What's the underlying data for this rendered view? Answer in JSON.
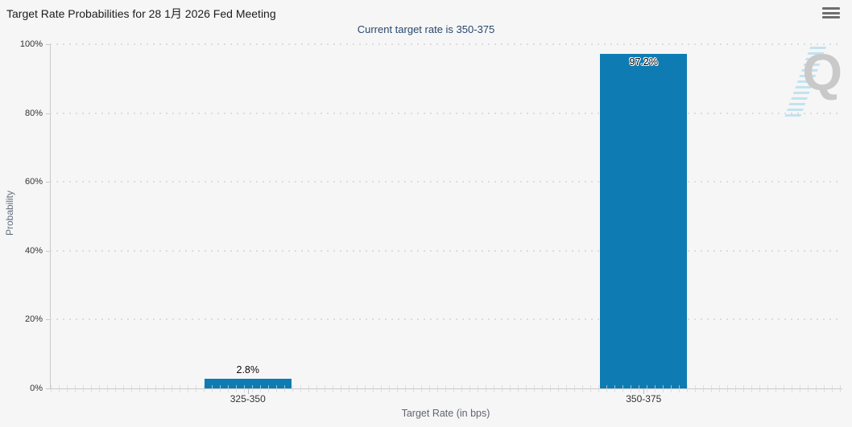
{
  "header": {
    "title": "Target Rate Probabilities for 28 1月 2026 Fed Meeting"
  },
  "menu": {
    "icon": "hamburger-menu-icon"
  },
  "subtitle": {
    "text": "Current target rate is 350-375"
  },
  "watermark": {
    "letter": "Q"
  },
  "chart_data": {
    "type": "bar",
    "title": "Target Rate Probabilities for 28 1月 2026 Fed Meeting",
    "subtitle": "Current target rate is 350-375",
    "categories": [
      "325-350",
      "350-375"
    ],
    "values": [
      2.8,
      97.2
    ],
    "value_labels": [
      "2.8%",
      "97.2%"
    ],
    "xlabel": "Target Rate (in bps)",
    "ylabel": "Probability",
    "ylim": [
      0,
      100
    ],
    "yticks": [
      0,
      20,
      40,
      60,
      80,
      100
    ],
    "ytick_labels": [
      "0%",
      "20%",
      "40%",
      "60%",
      "80%",
      "100%"
    ],
    "grid": "horizontal-dotted",
    "legend": "none",
    "bar_color": "#0e7cb3"
  },
  "colors": {
    "background": "#f6f6f6",
    "bar": "#0e7cb3",
    "axis": "#c9c9c9",
    "grid_dot": "#dcdcdc",
    "title_text": "#1c1c1c",
    "subtitle_text": "#27486e",
    "tick_text": "#333333",
    "axis_title_text": "#60666e",
    "menu_icon": "#6e6e6e",
    "watermark_q": "#c9c9c9",
    "watermark_stripes": "#c3e2f0"
  }
}
